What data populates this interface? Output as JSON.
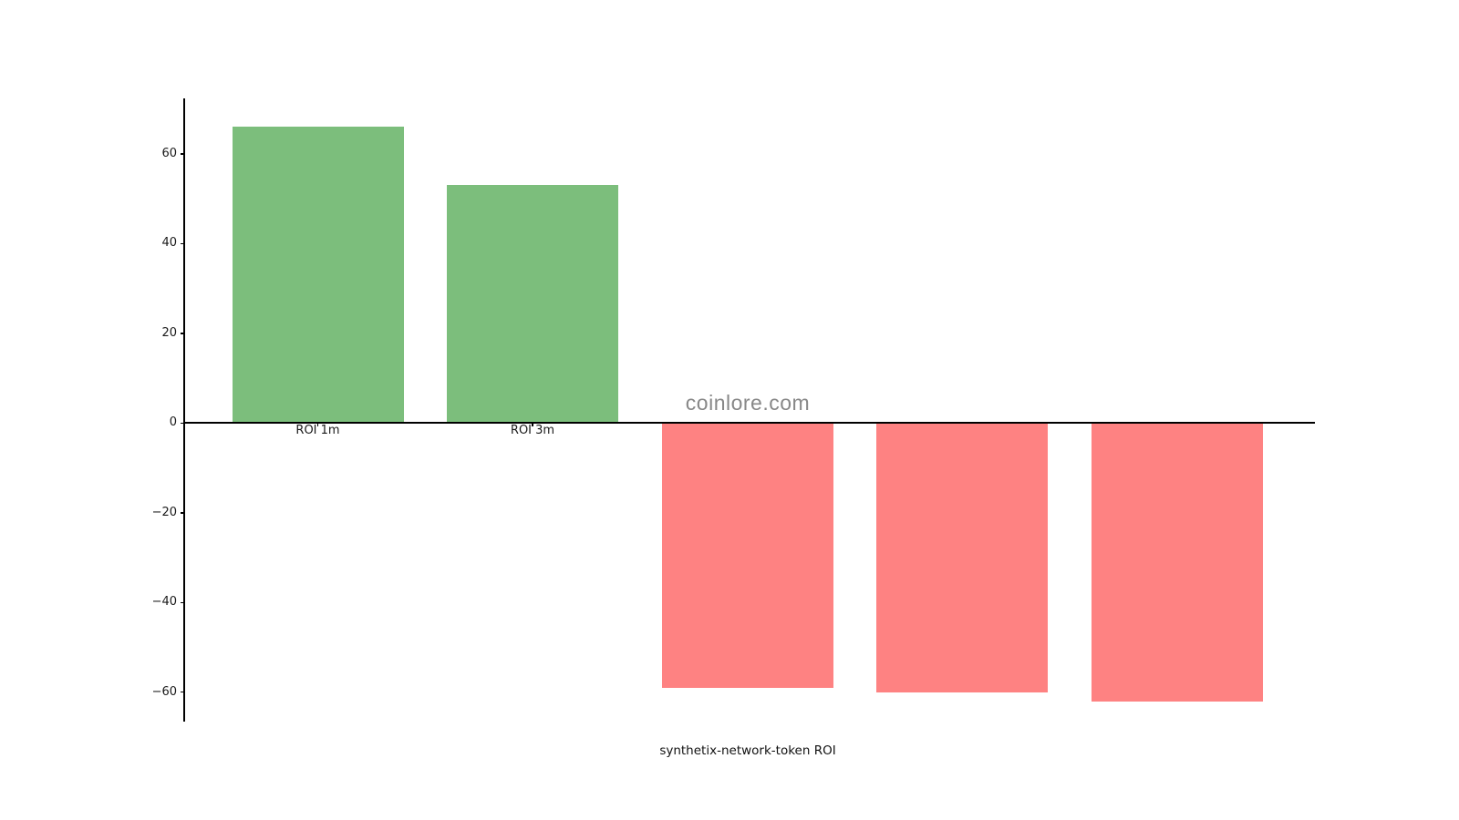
{
  "watermark": {
    "text": "coinlore.com",
    "color": "#888888"
  },
  "chart_data": {
    "type": "bar",
    "title": "",
    "xlabel": "synthetix-network-token ROI",
    "ylabel": "",
    "categories": [
      "ROI 1m",
      "ROI 3m",
      "",
      "",
      ""
    ],
    "values": [
      66,
      53,
      -59,
      -60,
      -62
    ],
    "bar_colors": [
      "#7cbe7c",
      "#7cbe7c",
      "#fe8282",
      "#fe8282",
      "#fe8282"
    ],
    "positive_color": "#7cbe7c",
    "negative_color": "#fe8282",
    "yticks": [
      {
        "label": "60",
        "value": 60
      },
      {
        "label": "40",
        "value": 40
      },
      {
        "label": "20",
        "value": 20
      },
      {
        "label": "0",
        "value": 0
      },
      {
        "label": "−20",
        "value": -20
      },
      {
        "label": "−40",
        "value": -40
      },
      {
        "label": "−60",
        "value": -60
      }
    ],
    "ylim": [
      -66.6,
      72.3
    ],
    "grid": false,
    "legend": false,
    "axis_color": "#000000",
    "hidden_category_labels_note": "labels of the three negative bars are covered by the bars"
  }
}
